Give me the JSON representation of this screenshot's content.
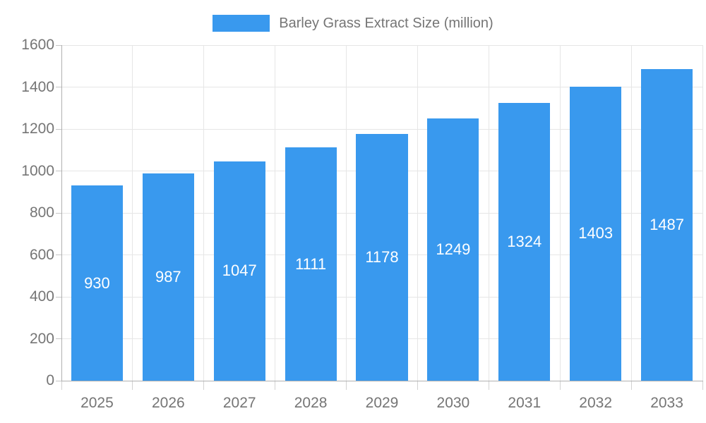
{
  "legend": {
    "label": "Barley Grass Extract Size (million)"
  },
  "chart_data": {
    "type": "bar",
    "title": "Barley Grass Extract Size (million)",
    "series_name": "Barley Grass Extract Size (million)",
    "categories": [
      "2025",
      "2026",
      "2027",
      "2028",
      "2029",
      "2030",
      "2031",
      "2032",
      "2033"
    ],
    "values": [
      930,
      987,
      1047,
      1111,
      1178,
      1249,
      1324,
      1403,
      1487
    ],
    "xlabel": "",
    "ylabel": "",
    "ylim": [
      0,
      1600
    ],
    "y_ticks": [
      0,
      200,
      400,
      600,
      800,
      1000,
      1200,
      1400,
      1600
    ],
    "bar_color": "#3999EE",
    "bar_label_color": "#ffffff",
    "axis_text_color": "#757575",
    "grid": true,
    "legend_position": "top"
  }
}
